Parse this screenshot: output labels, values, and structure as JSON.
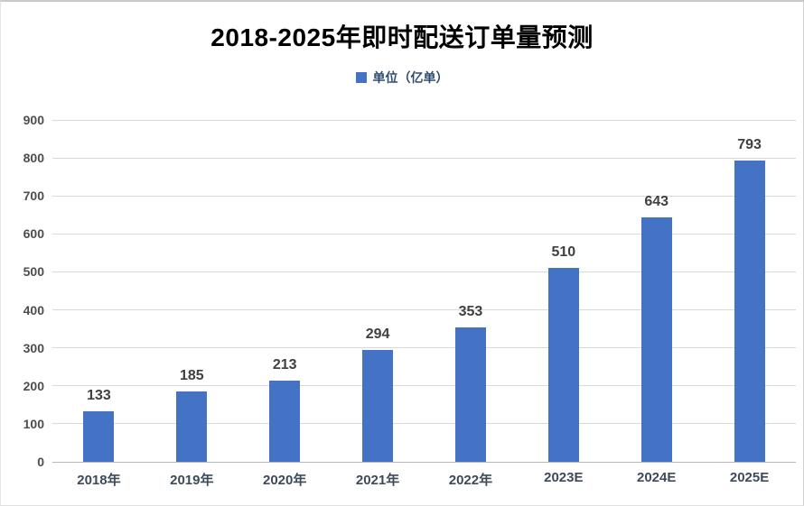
{
  "chart_data": {
    "type": "bar",
    "title": "2018-2025年即时配送订单量预测",
    "legend": "单位（亿单）",
    "categories": [
      "2018年",
      "2019年",
      "2020年",
      "2021年",
      "2022年",
      "2023E",
      "2024E",
      "2025E"
    ],
    "values": [
      133,
      185,
      213,
      294,
      353,
      510,
      643,
      793
    ],
    "xlabel": "",
    "ylabel": "",
    "ylim": [
      0,
      900
    ],
    "yticks": [
      0,
      100,
      200,
      300,
      400,
      500,
      600,
      700,
      800,
      900
    ],
    "grid": true,
    "legend_position": "top-center",
    "colors": {
      "bar": "#4472C4",
      "gridline": "#D9D9D9",
      "axis_line": "#B8B8B8",
      "title_text": "#000000",
      "value_label_text": "#404040",
      "ytick_text": "#4D4D4D",
      "xlabel_text": "#3D4A5C",
      "legend_text": "#2E4B6E"
    }
  }
}
